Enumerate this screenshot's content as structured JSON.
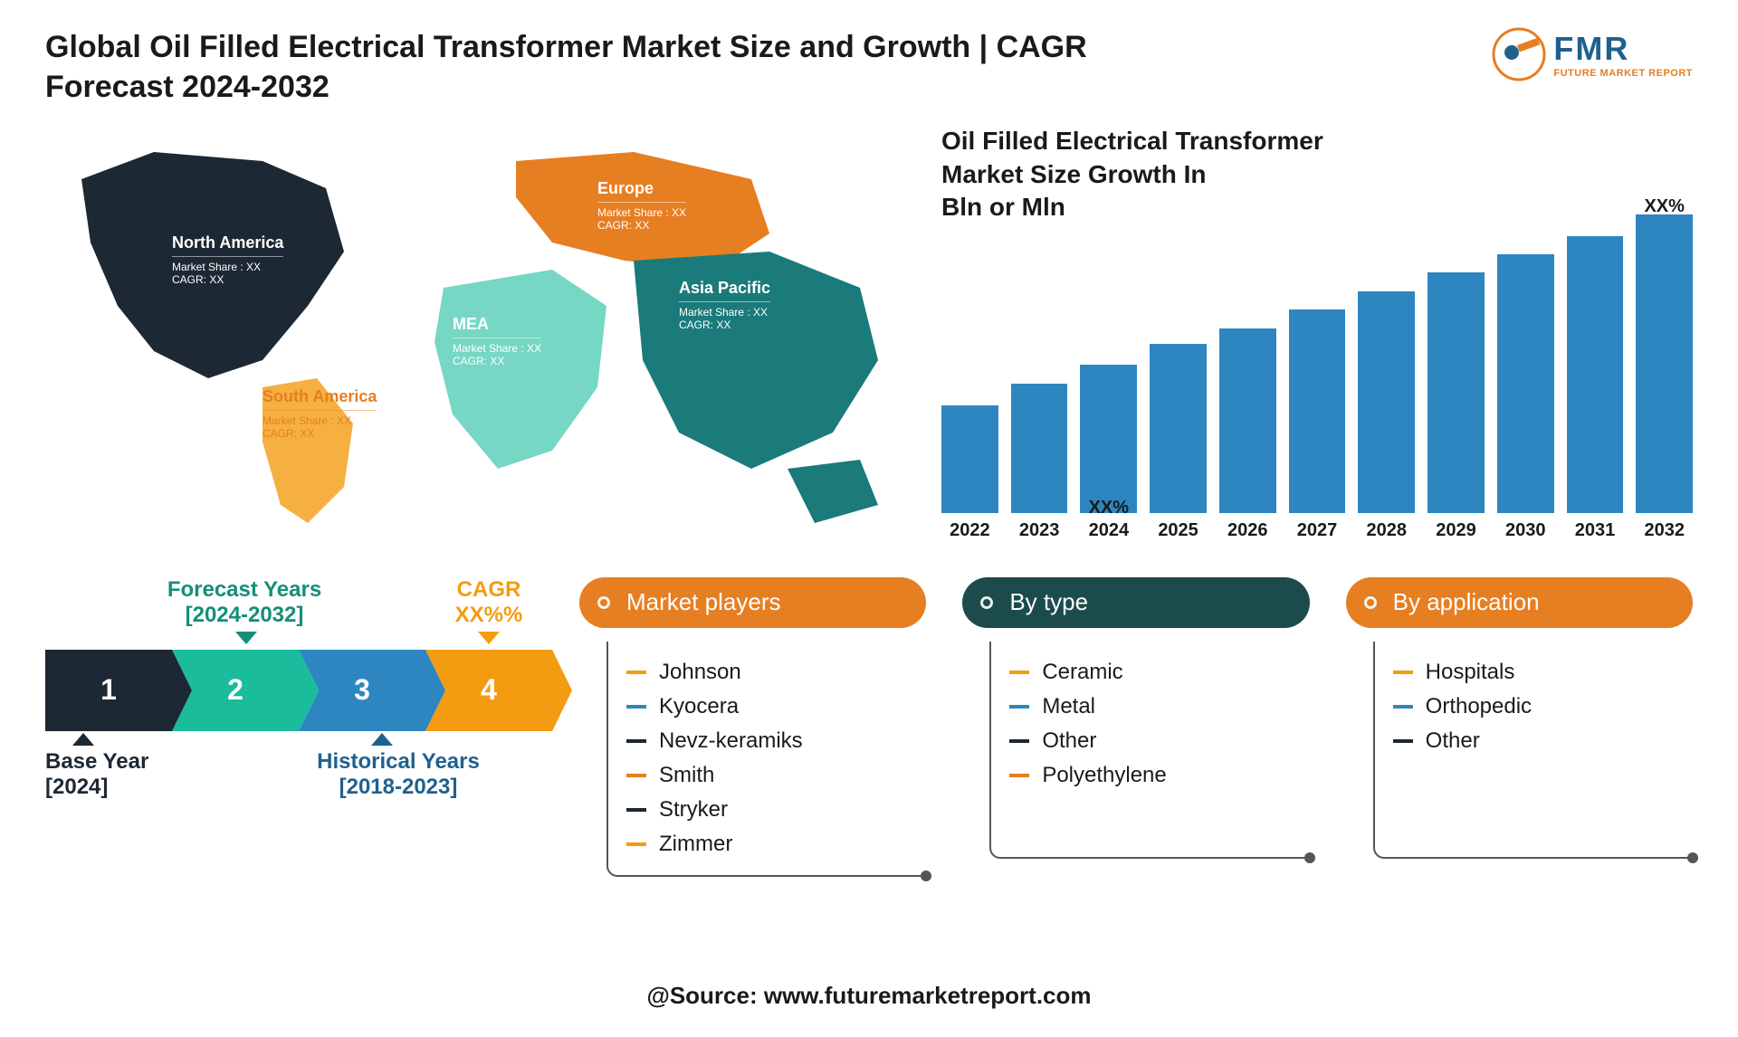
{
  "title_line1": "Global Oil Filled Electrical Transformer Market Size and Growth | CAGR",
  "title_line2": " Forecast 2024-2032",
  "logo": {
    "main": "FMR",
    "sub": "FUTURE MARKET REPORT"
  },
  "colors": {
    "navy": "#1c2833",
    "teal": "#1abc9c",
    "teal_dark": "#148f77",
    "cyan": "#5dade2",
    "blue": "#2e86c1",
    "blue_dark": "#1f618d",
    "orange": "#e67e22",
    "orange_dark": "#d35400",
    "amber": "#f39c12",
    "light_teal": "#76d7c4",
    "dark_teal_map": "#1b7a7a",
    "text": "#1a1a1a",
    "bg": "#ffffff"
  },
  "map": {
    "regions": [
      {
        "name": "North America",
        "share": "Market Share : XX",
        "cagr": "CAGR: XX",
        "color": "#1c2833"
      },
      {
        "name": "South America",
        "share": "Market Share : XX",
        "cagr": "CAGR: XX",
        "color": "#f5b041"
      },
      {
        "name": "Europe",
        "share": "Market Share : XX",
        "cagr": "CAGR: XX",
        "color": "#e67e22"
      },
      {
        "name": "MEA",
        "share": "Market Share : XX",
        "cagr": "CAGR: XX",
        "color": "#76d7c4"
      },
      {
        "name": "Asia Pacific",
        "share": "Market Share : XX",
        "cagr": "CAGR: XX",
        "color": "#1b7a7a"
      }
    ]
  },
  "bar_chart": {
    "type": "bar",
    "title_l1": "Oil Filled Electrical Transformer",
    "title_l2": "Market Size Growth In",
    "title_l3": "Bln or Mln",
    "years": [
      "2022",
      "2023",
      "2024",
      "2025",
      "2026",
      "2027",
      "2028",
      "2029",
      "2030",
      "2031",
      "2032"
    ],
    "heights_pct": [
      35,
      42,
      48,
      55,
      60,
      66,
      72,
      78,
      84,
      90,
      97
    ],
    "bar_color": "#2e86c1",
    "annotations": {
      "2024": "XX%",
      "2032": "XX%"
    },
    "label_fontsize": 20,
    "title_fontsize": 28
  },
  "timeline": {
    "steps": [
      {
        "num": "1",
        "bg": "#1c2833"
      },
      {
        "num": "2",
        "bg": "#1abc9c"
      },
      {
        "num": "3",
        "bg": "#2e86c1"
      },
      {
        "num": "4",
        "bg": "#f39c12"
      }
    ],
    "top_labels": {
      "forecast": {
        "l1": "Forecast Years",
        "l2": "[2024-2032]",
        "color": "#148f77"
      },
      "cagr": {
        "l1": "CAGR",
        "l2": "XX%%",
        "color": "#f39c12"
      }
    },
    "bottom_labels": {
      "base": {
        "l1": "Base Year",
        "l2": "[2024]",
        "color": "#1c2833"
      },
      "hist": {
        "l1": "Historical Years",
        "l2": "[2018-2023]",
        "color": "#1f618d"
      }
    }
  },
  "info_columns": [
    {
      "title": "Market players",
      "pill_color": "#e67e22",
      "items": [
        {
          "text": "Johnson",
          "tick": "#f39c12"
        },
        {
          "text": "Kyocera",
          "tick": "#2e86c1"
        },
        {
          "text": "Nevz-keramiks",
          "tick": "#1c2833"
        },
        {
          "text": "Smith",
          "tick": "#e67e22"
        },
        {
          "text": "Stryker",
          "tick": "#1c2833"
        },
        {
          "text": "Zimmer",
          "tick": "#f39c12"
        }
      ]
    },
    {
      "title": "By type",
      "pill_color": "#1c4b4b",
      "items": [
        {
          "text": "Ceramic",
          "tick": "#f39c12"
        },
        {
          "text": "Metal",
          "tick": "#2e86c1"
        },
        {
          "text": "Other",
          "tick": "#1c2833"
        },
        {
          "text": "Polyethylene",
          "tick": "#e67e22"
        }
      ]
    },
    {
      "title": "By application",
      "pill_color": "#e67e22",
      "items": [
        {
          "text": "Hospitals",
          "tick": "#f39c12"
        },
        {
          "text": "Orthopedic",
          "tick": "#2e86c1"
        },
        {
          "text": "Other",
          "tick": "#1c2833"
        }
      ]
    }
  ],
  "source": "@Source: www.futuremarketreport.com"
}
